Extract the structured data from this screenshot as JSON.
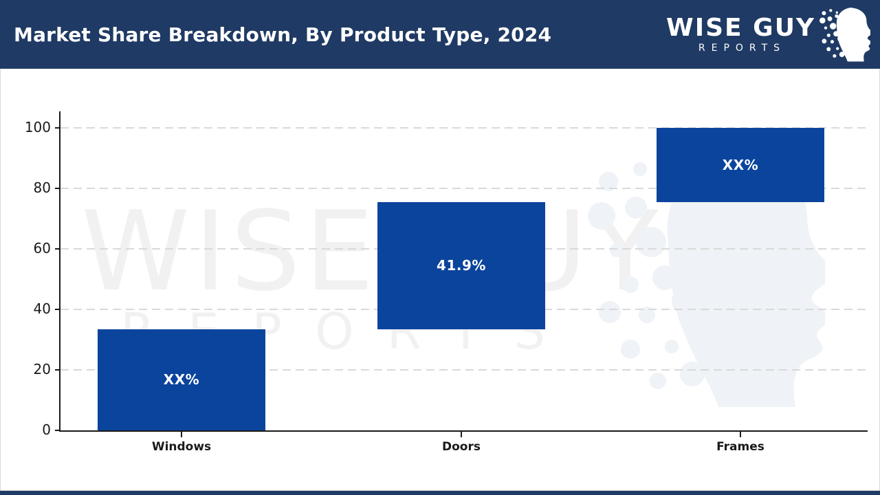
{
  "header": {
    "title": "Market Share Breakdown, By Product Type, 2024",
    "logo": {
      "wordmark": "WISE GUY",
      "subtext": "REPORTS"
    }
  },
  "watermark": {
    "wordmark": "WISE GUY",
    "subtext": "REPORTS"
  },
  "chart_data": {
    "type": "bar",
    "subtype": "waterfall",
    "title": "Market Share Breakdown, By Product Type, 2024",
    "categories": [
      "Windows",
      "Doors",
      "Frames"
    ],
    "segments": [
      {
        "category": "Windows",
        "start": 0,
        "end": 33.5,
        "label": "XX%"
      },
      {
        "category": "Doors",
        "start": 33.5,
        "end": 75.4,
        "label": "41.9%"
      },
      {
        "category": "Frames",
        "start": 75.4,
        "end": 100,
        "label": "XX%"
      }
    ],
    "yticks": [
      0,
      20,
      40,
      60,
      80,
      100
    ],
    "ylim": [
      0,
      105
    ],
    "grid": "horizontal-dashed",
    "legend": "none",
    "xlabel": "",
    "ylabel": "",
    "bar_color": "#0b449d",
    "bar_label_color": "#ffffff"
  },
  "colors": {
    "header_bg": "#1f3a64",
    "footer_bg": "#1f3a64",
    "watermark": "#f1f1f2",
    "axis": "#1a1a1a",
    "gridline": "#d9d9d9"
  }
}
